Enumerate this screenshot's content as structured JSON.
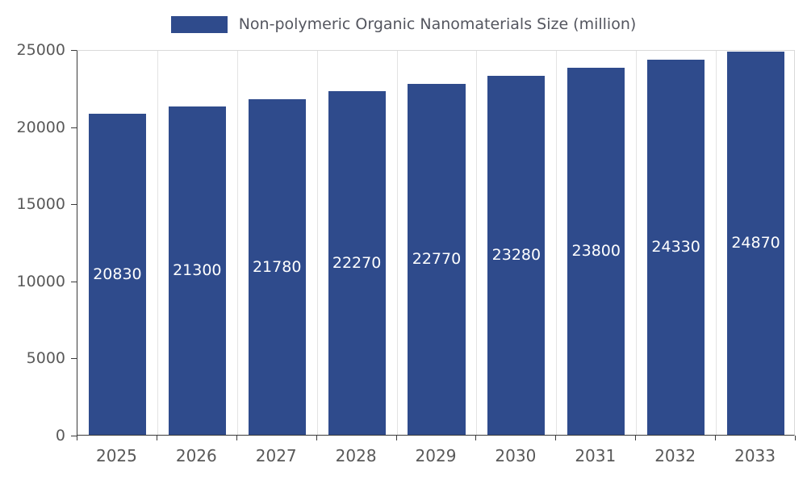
{
  "chart_data": {
    "type": "bar",
    "title": "Non-polymeric Organic Nanomaterials Size (million)",
    "categories": [
      "2025",
      "2026",
      "2027",
      "2028",
      "2029",
      "2030",
      "2031",
      "2032",
      "2033"
    ],
    "values": [
      20830,
      21300,
      21780,
      22270,
      22770,
      23280,
      23800,
      24330,
      24870
    ],
    "xlabel": "",
    "ylabel": "",
    "ylim": [
      0,
      25000
    ],
    "yticks": [
      0,
      5000,
      10000,
      15000,
      20000,
      25000
    ],
    "bar_color": "#2f4b8c",
    "value_label_color": "#ffffff",
    "axis_text_color": "#595959",
    "grid": "vertical-only",
    "legend_position": "top-center"
  }
}
